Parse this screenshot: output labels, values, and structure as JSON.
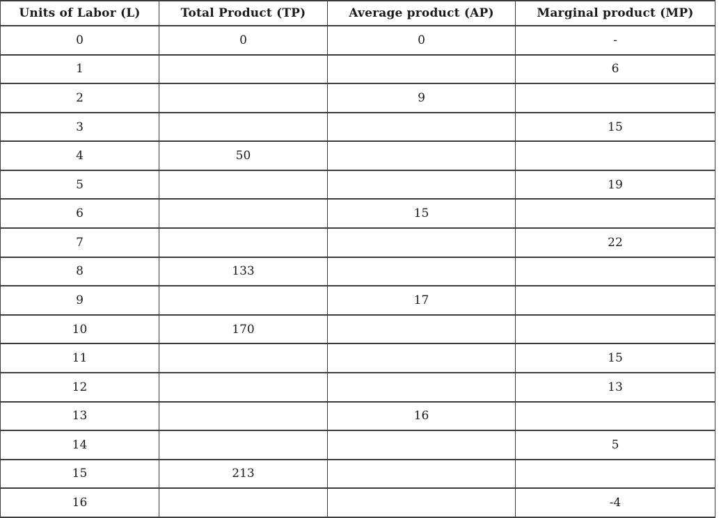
{
  "table": {
    "name": "product-schedule-table",
    "columns": [
      "Units of Labor (L)",
      "Total Product (TP)",
      "Average product (AP)",
      "Marginal product (MP)"
    ],
    "rows": [
      [
        "0",
        "0",
        "0",
        "-"
      ],
      [
        "1",
        "",
        "",
        "6"
      ],
      [
        "2",
        "",
        "9",
        ""
      ],
      [
        "3",
        "",
        "",
        "15"
      ],
      [
        "4",
        "50",
        "",
        ""
      ],
      [
        "5",
        "",
        "",
        "19"
      ],
      [
        "6",
        "",
        "15",
        ""
      ],
      [
        "7",
        "",
        "",
        "22"
      ],
      [
        "8",
        "133",
        "",
        ""
      ],
      [
        "9",
        "",
        "17",
        ""
      ],
      [
        "10",
        "170",
        "",
        ""
      ],
      [
        "11",
        "",
        "",
        "15"
      ],
      [
        "12",
        "",
        "",
        "13"
      ],
      [
        "13",
        "",
        "16",
        ""
      ],
      [
        "14",
        "",
        "",
        "5"
      ],
      [
        "15",
        "213",
        "",
        ""
      ],
      [
        "16",
        "",
        "",
        "-4"
      ]
    ],
    "border_color": "#3b3b3b",
    "text_color": "#1a1a1a",
    "background_color": "#ffffff"
  }
}
